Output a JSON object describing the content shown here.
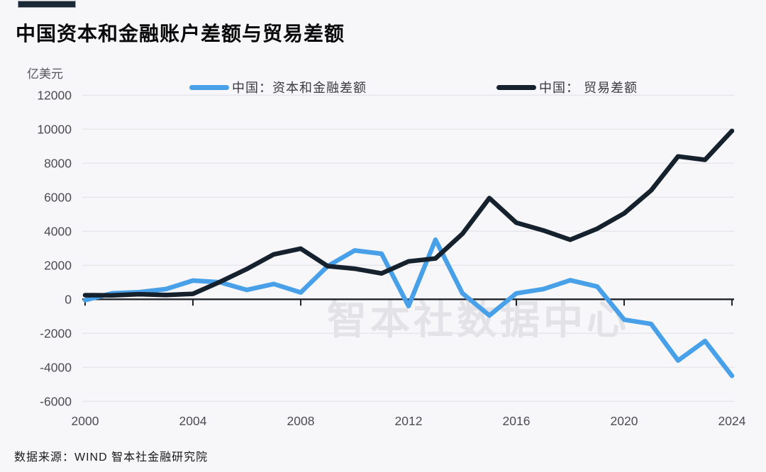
{
  "title": "中国资本和金融账户差额与贸易差额",
  "unit_label": "亿美元",
  "legend": {
    "capital": {
      "label": "中国：资本和金融差额",
      "color": "#48A1E8"
    },
    "trade": {
      "label": "中国： 贸易差额",
      "color": "#16212E"
    }
  },
  "watermark": "智本社数据中心",
  "source": "数据来源：WIND 智本社金融研究院",
  "colors": {
    "background": "#f7f7f9",
    "gridline": "#e6e6ea",
    "axis": "#1f232a",
    "tick_text": "#4c4c52",
    "capital_line": "#48A1E8",
    "trade_line": "#16212E",
    "watermark": "#e2e2e7"
  },
  "chart_data": {
    "type": "line",
    "title": "中国资本和金融账户差额与贸易差额",
    "ylabel": "亿美元",
    "xlabel": "",
    "x": [
      2000,
      2001,
      2002,
      2003,
      2004,
      2005,
      2006,
      2007,
      2008,
      2009,
      2010,
      2011,
      2012,
      2013,
      2014,
      2015,
      2016,
      2017,
      2018,
      2019,
      2020,
      2021,
      2022,
      2023,
      2024
    ],
    "series": [
      {
        "name": "中国：资本和金融差额",
        "color": "#48A1E8",
        "values": [
          -50,
          350,
          420,
          600,
          1100,
          1000,
          550,
          900,
          400,
          1950,
          2870,
          2680,
          -400,
          3500,
          350,
          -950,
          350,
          600,
          1120,
          750,
          -1200,
          -1450,
          -3600,
          -2450,
          -4500
        ]
      },
      {
        "name": "中国：贸易差额",
        "color": "#16212E",
        "values": [
          240,
          230,
          300,
          255,
          320,
          1020,
          1780,
          2640,
          2980,
          1950,
          1800,
          1520,
          2230,
          2400,
          3850,
          5950,
          4500,
          4050,
          3500,
          4150,
          5050,
          6400,
          8400,
          8200,
          9900
        ]
      }
    ],
    "ylim": [
      -6000,
      12000
    ],
    "ytick_step": 2000,
    "xticks": [
      2000,
      2004,
      2008,
      2012,
      2016,
      2020,
      2024
    ],
    "grid": "horizontal",
    "legend_position": "top"
  }
}
